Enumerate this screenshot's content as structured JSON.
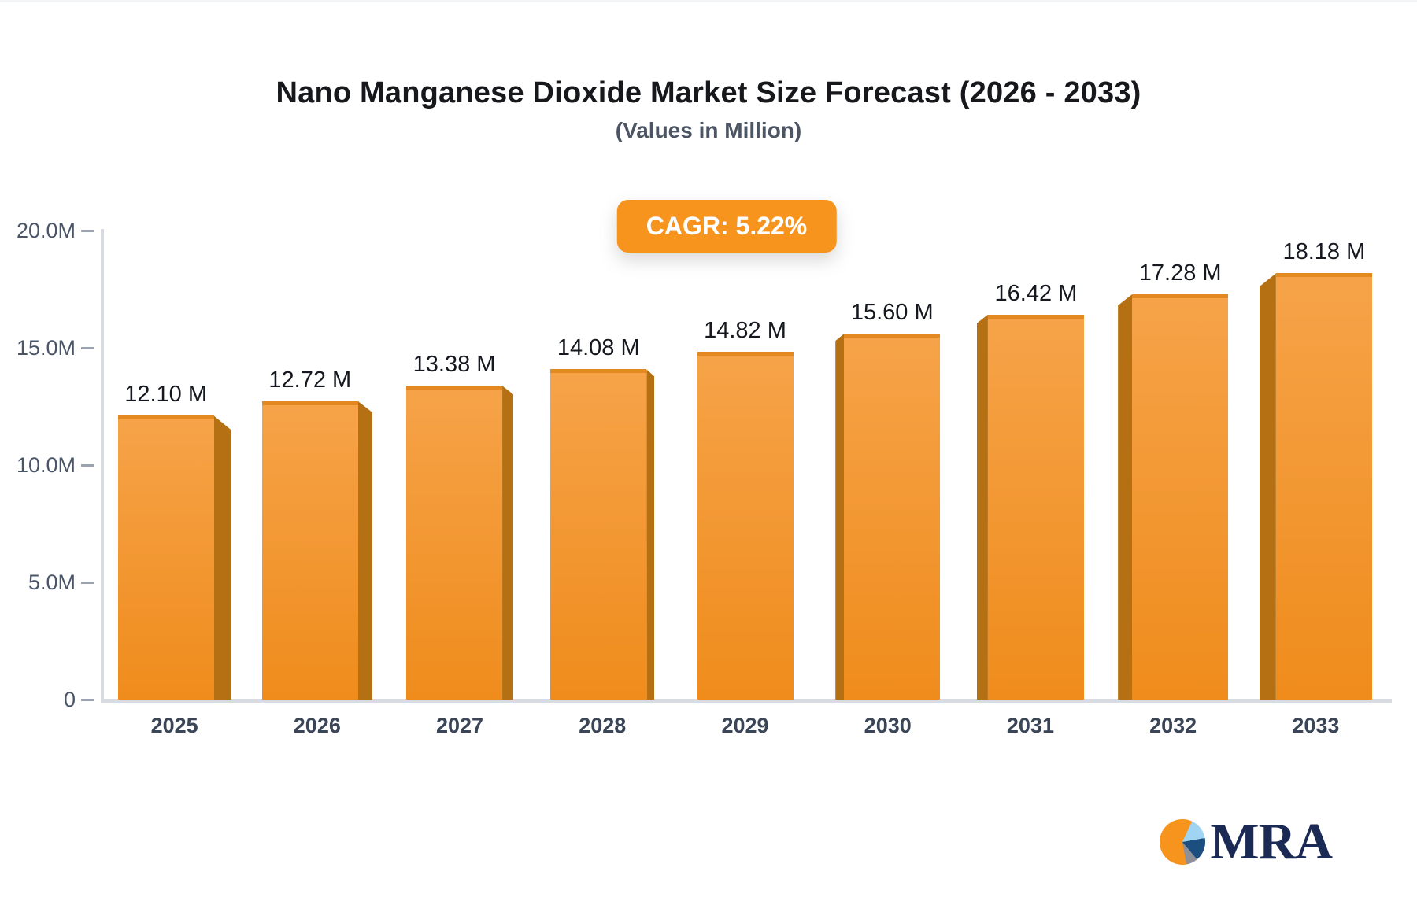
{
  "header": {
    "title": "Nano Manganese Dioxide Market Size Forecast (2026 - 2033)",
    "subtitle": "(Values in Million)",
    "cagr_label": "CAGR: 5.22%"
  },
  "colors": {
    "accent_orange": "#f7941e",
    "bar_face_top": "#f6a349",
    "bar_face_bottom": "#ef8c1c",
    "bar_side": "#b57013",
    "axis_gray": "#d8dbe1",
    "label_slate": "#4a5568",
    "logo_navy": "#1b2a55",
    "logo_lightblue": "#9fd4f2",
    "logo_steelblue": "#1c4e80",
    "logo_gray": "#8f8f97"
  },
  "logo": {
    "text": "MRA",
    "icon": "pie-chart-icon"
  },
  "chart_data": {
    "type": "bar",
    "title": "Nano Manganese Dioxide Market Size Forecast (2026 - 2033)",
    "subtitle": "(Values in Million)",
    "annotation": "CAGR: 5.22%",
    "categories": [
      "2025",
      "2026",
      "2027",
      "2028",
      "2029",
      "2030",
      "2031",
      "2032",
      "2033"
    ],
    "values": [
      12.1,
      12.72,
      13.38,
      14.08,
      14.82,
      15.6,
      16.42,
      17.28,
      18.18
    ],
    "value_labels": [
      "12.10 M",
      "12.72 M",
      "13.38 M",
      "14.08 M",
      "14.82 M",
      "15.60 M",
      "16.42 M",
      "17.28 M",
      "18.18 M"
    ],
    "unit": "Million",
    "xlabel": "",
    "ylabel": "",
    "ylim_millions": [
      0,
      20
    ],
    "y_ticks": [
      {
        "label": "20.0M",
        "value": 20
      },
      {
        "label": "15.0M",
        "value": 15
      },
      {
        "label": "10.0M",
        "value": 10
      },
      {
        "label": "5.0M",
        "value": 5
      },
      {
        "label": "0",
        "value": 0
      }
    ],
    "grid": false,
    "legend": false
  }
}
